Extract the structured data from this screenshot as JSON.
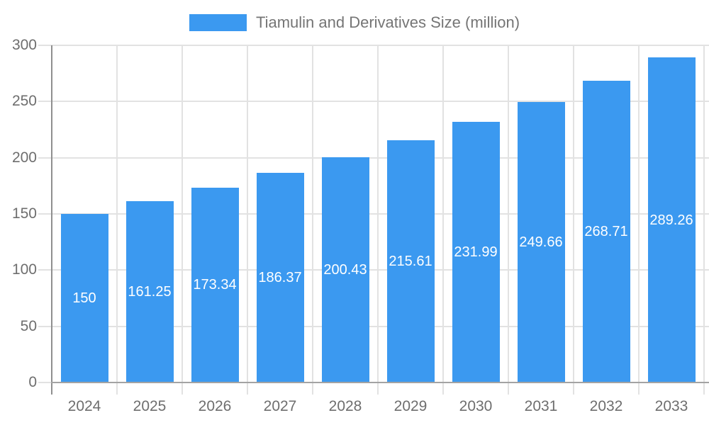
{
  "chart_data": {
    "type": "bar",
    "title": "Tiamulin and Derivatives Size (million)",
    "legend": {
      "label": "Tiamulin and Derivatives Size (million)",
      "position": "top-center"
    },
    "categories": [
      "2024",
      "2025",
      "2026",
      "2027",
      "2028",
      "2029",
      "2030",
      "2031",
      "2032",
      "2033"
    ],
    "series": [
      {
        "name": "Tiamulin and Derivatives Size (million)",
        "values": [
          150,
          161.25,
          173.34,
          186.37,
          200.43,
          215.61,
          231.99,
          249.66,
          268.71,
          289.26
        ],
        "value_labels": [
          "150",
          "161.25",
          "173.34",
          "186.37",
          "200.43",
          "215.61",
          "231.99",
          "249.66",
          "268.71",
          "289.26"
        ]
      }
    ],
    "xlabel": "",
    "ylabel": "",
    "ylim": [
      0,
      300
    ],
    "yticks": [
      0,
      50,
      100,
      150,
      200,
      250,
      300
    ],
    "grid": "on",
    "value_label_position": "inside-center",
    "colors": {
      "bar": "#3B99F0",
      "grid_line": "#E2E2E2",
      "axis_line": "#8F8F8F",
      "baseline": "#A3A3A3",
      "tick_label": "#6E6E6E",
      "legend_text": "#757575",
      "value_label": "#FFFFFF",
      "background": "#FFFFFF"
    }
  }
}
